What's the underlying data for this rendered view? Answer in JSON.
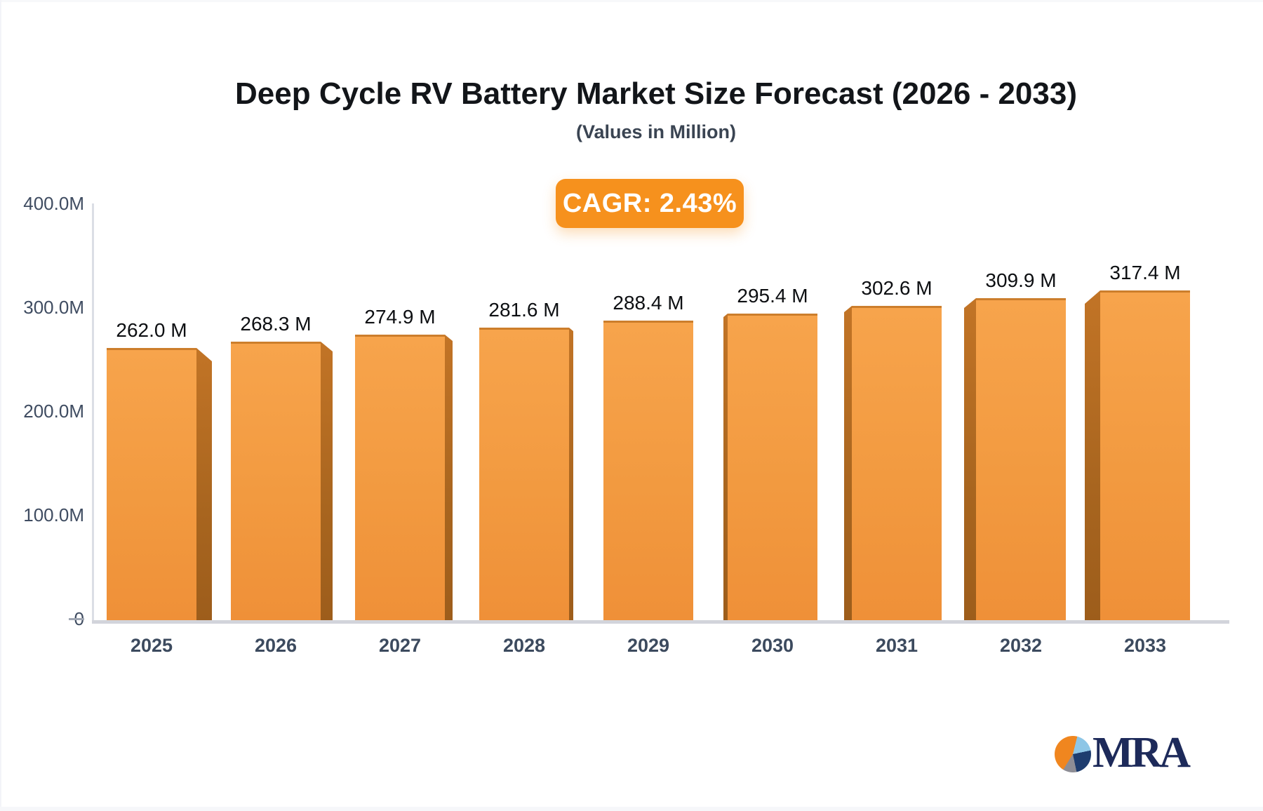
{
  "header": {
    "title": "Deep Cycle RV Battery Market Size Forecast (2026 - 2033)",
    "subtitle": "(Values in Million)"
  },
  "badge": {
    "label": "CAGR: 2.43%",
    "color": "#f6911d"
  },
  "logo": {
    "wordmark": "MRA",
    "icon": "pie-chart-icon"
  },
  "colors": {
    "bar_front": "#f49b42",
    "bar_front_top_edge": "#cc7e2c",
    "bar_side": "#ae6a20",
    "axis_text": "#3f4c61",
    "value_text": "#0d0f12",
    "baseline": "#d2d4db",
    "badge_orange": "#f6911d",
    "logo_navy": "#1d2a5a"
  },
  "chart_data": {
    "type": "bar",
    "title": "Deep Cycle RV Battery Market Size Forecast (2026 - 2033)",
    "subtitle": "(Values in Million)",
    "cagr_label": "CAGR: 2.43%",
    "categories": [
      "2025",
      "2026",
      "2027",
      "2028",
      "2029",
      "2030",
      "2031",
      "2032",
      "2033"
    ],
    "values": [
      262.0,
      268.3,
      274.9,
      281.6,
      288.4,
      295.4,
      302.6,
      309.9,
      317.4
    ],
    "value_labels": [
      "262.0 M",
      "268.3 M",
      "274.9 M",
      "281.6 M",
      "288.4 M",
      "295.4 M",
      "302.6 M",
      "309.9 M",
      "317.4 M"
    ],
    "ytick_labels": [
      "400.0M",
      "300.0M",
      "200.0M",
      "100.0M",
      "0"
    ],
    "ytick_values": [
      400,
      300,
      200,
      100,
      0
    ],
    "ylim": [
      0,
      400
    ],
    "grid": false,
    "legend": false,
    "style": "3d-extruded-bars-perspective-from-center"
  }
}
